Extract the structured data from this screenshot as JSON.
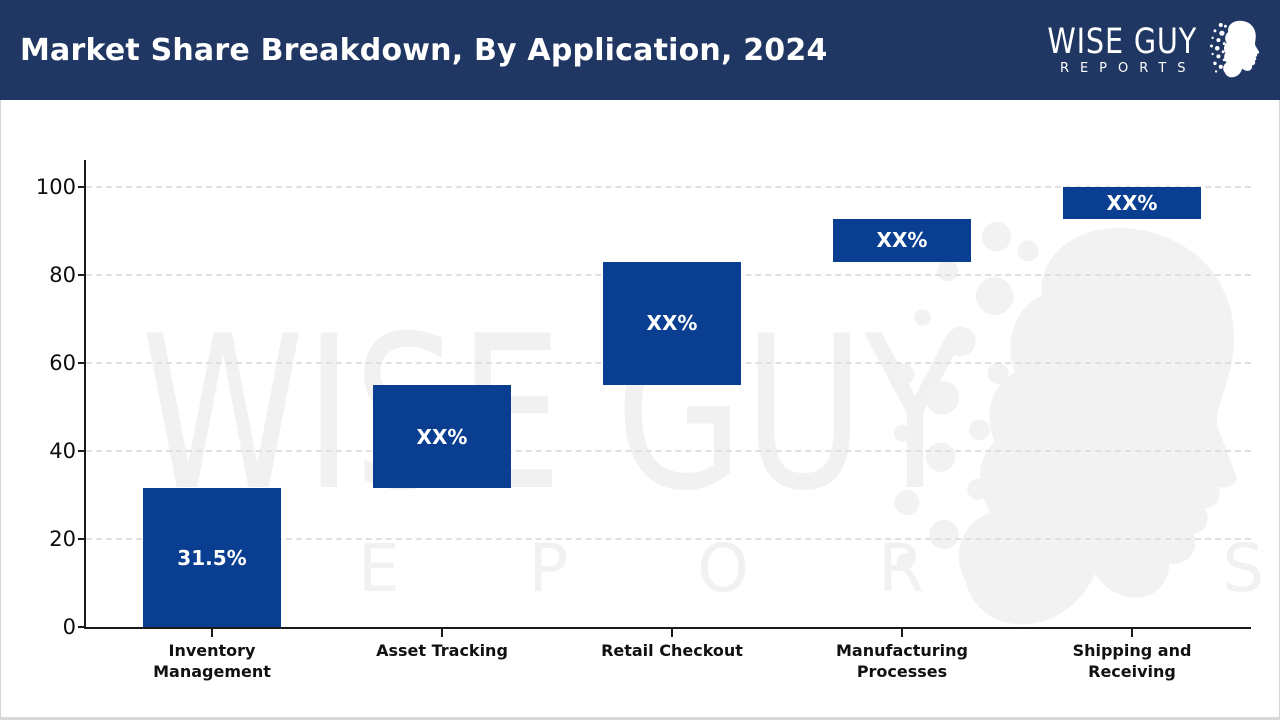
{
  "header": {
    "title": "Market Share Breakdown, By Application, 2024",
    "bg_color": "#203763",
    "logo": {
      "wordmark": "WISE GUY",
      "sub": "REPORTS"
    }
  },
  "watermark": {
    "wordmark": "WISE GUY",
    "sub": "R E P O R T S"
  },
  "chart_data": {
    "type": "bar",
    "subtype": "waterfall",
    "title": "Market Share Breakdown, By Application, 2024",
    "xlabel": "",
    "ylabel": "",
    "ylim": [
      0,
      105
    ],
    "yticks": [
      0,
      20,
      40,
      60,
      80,
      100
    ],
    "grid": "horizontal-dashed",
    "legend": "none",
    "bar_color": "#0a3e91",
    "label_color": "#ffffff",
    "categories": [
      "Inventory Management",
      "Asset Tracking",
      "Retail Checkout",
      "Manufacturing Processes",
      "Shipping and Receiving"
    ],
    "category_label_lines": [
      [
        "Inventory",
        "Management"
      ],
      [
        "Asset Tracking"
      ],
      [
        "Retail Checkout"
      ],
      [
        "Manufacturing",
        "Processes"
      ],
      [
        "Shipping and",
        "Receiving"
      ]
    ],
    "segments": [
      {
        "category": "Inventory Management",
        "start": 0,
        "end": 31.5,
        "value": 31.5,
        "label": "31.5%"
      },
      {
        "category": "Asset Tracking",
        "start": 31.5,
        "end": 55,
        "value": 23.5,
        "label": "XX%"
      },
      {
        "category": "Retail Checkout",
        "start": 55,
        "end": 83,
        "value": 28,
        "label": "XX%"
      },
      {
        "category": "Manufacturing Processes",
        "start": 83,
        "end": 92.8,
        "value": 9.8,
        "label": "XX%"
      },
      {
        "category": "Shipping and Receiving",
        "start": 92.8,
        "end": 100,
        "value": 7.2,
        "label": "XX%"
      }
    ]
  }
}
